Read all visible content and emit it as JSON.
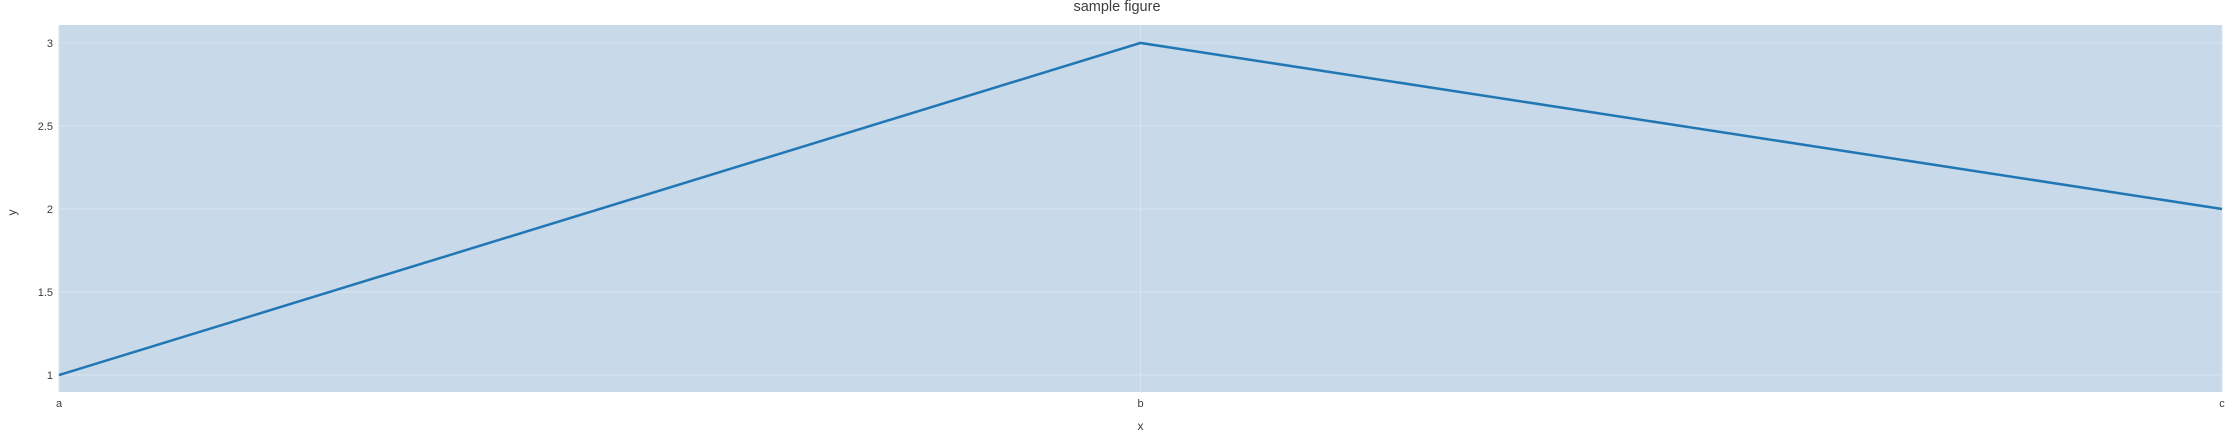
{
  "chart_data": {
    "type": "line",
    "title": "sample figure",
    "categories": [
      "a",
      "b",
      "c"
    ],
    "values": [
      1,
      3,
      2
    ],
    "xlabel": "x",
    "ylabel": "y",
    "yticks": [
      1,
      1.5,
      2,
      2.5,
      3
    ],
    "ytick_labels": [
      "1",
      "1.5",
      "2",
      "2.5",
      "3"
    ],
    "ylim": [
      0.898,
      3.108
    ],
    "grid": true,
    "legend": false,
    "style": {
      "line_color": "#2177b4",
      "plot_bg": "#c8d9ea",
      "grid_color": "#d7e3f0",
      "paper_bg": "#ffffff",
      "text_color": "#3d3d3d"
    }
  }
}
